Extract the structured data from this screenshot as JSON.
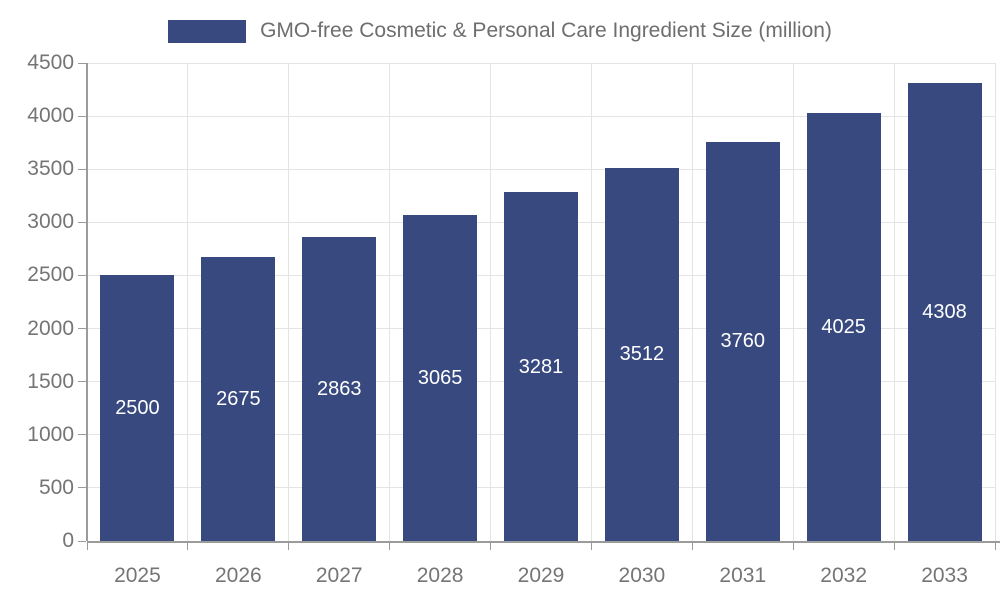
{
  "chart_data": {
    "type": "bar",
    "title": "GMO-free Cosmetic & Personal Care Ingredient Size (million)",
    "categories": [
      "2025",
      "2026",
      "2027",
      "2028",
      "2029",
      "2030",
      "2031",
      "2032",
      "2033"
    ],
    "values": [
      2500,
      2675,
      2863,
      3065,
      3281,
      3512,
      3760,
      4025,
      4308
    ],
    "series": [
      {
        "name": "GMO-free Cosmetic & Personal Care Ingredient Size (million)",
        "values": [
          2500,
          2675,
          2863,
          3065,
          3281,
          3512,
          3760,
          4025,
          4308
        ]
      }
    ],
    "xlabel": "",
    "ylabel": "",
    "ylim": [
      0,
      4500
    ],
    "yticks": [
      0,
      500,
      1000,
      1500,
      2000,
      2500,
      3000,
      3500,
      4000,
      4500
    ],
    "grid": true,
    "legend_position": "top-center",
    "bar_label_position": "inside-center",
    "colors": {
      "bar": "#37497F",
      "bar_label": "#FFFFFF",
      "grid_line": "#E4E4E4",
      "axis_line": "#9B9B9B",
      "tick_label": "#757575",
      "legend_text": "#6E6E6E",
      "background": "#FFFFFF"
    }
  }
}
